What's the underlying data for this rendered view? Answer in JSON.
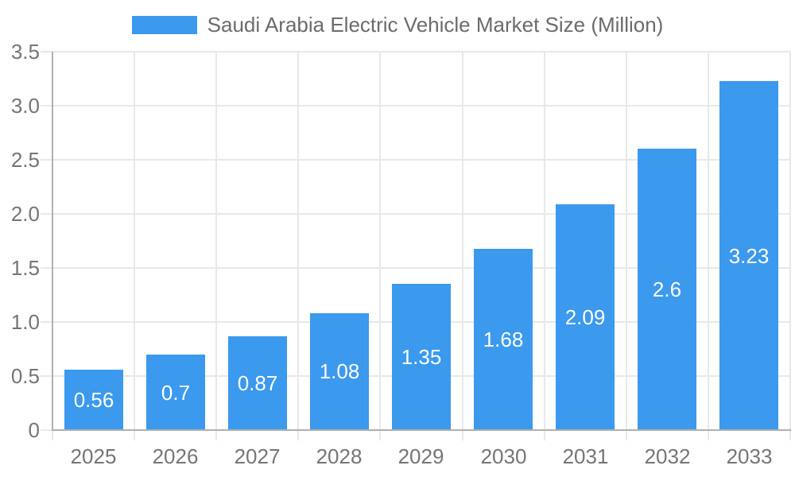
{
  "chart_data": {
    "type": "bar",
    "title": "Saudi Arabia Electric Vehicle Market Size (Million)",
    "legend_position": "top",
    "categories": [
      "2025",
      "2026",
      "2027",
      "2028",
      "2029",
      "2030",
      "2031",
      "2032",
      "2033"
    ],
    "values": [
      0.56,
      0.7,
      0.87,
      1.08,
      1.35,
      1.68,
      2.09,
      2.6,
      3.23
    ],
    "value_labels": [
      "0.56",
      "0.7",
      "0.87",
      "1.08",
      "1.35",
      "1.68",
      "2.09",
      "2.6",
      "3.23"
    ],
    "xlabel": "",
    "ylabel": "",
    "ylim": [
      0,
      3.5
    ],
    "ytick_labels": [
      "0",
      "0.5",
      "1.0",
      "1.5",
      "2.0",
      "2.5",
      "3.0",
      "3.5"
    ],
    "grid": true,
    "colors": {
      "bar": "#3b99ee",
      "value_label": "#ffffff",
      "tick_label": "#757575",
      "legend_text": "#6b6b6b",
      "gridline": "#e8e8e8",
      "axis_line": "#b0b0b0",
      "background": "#ffffff"
    }
  }
}
